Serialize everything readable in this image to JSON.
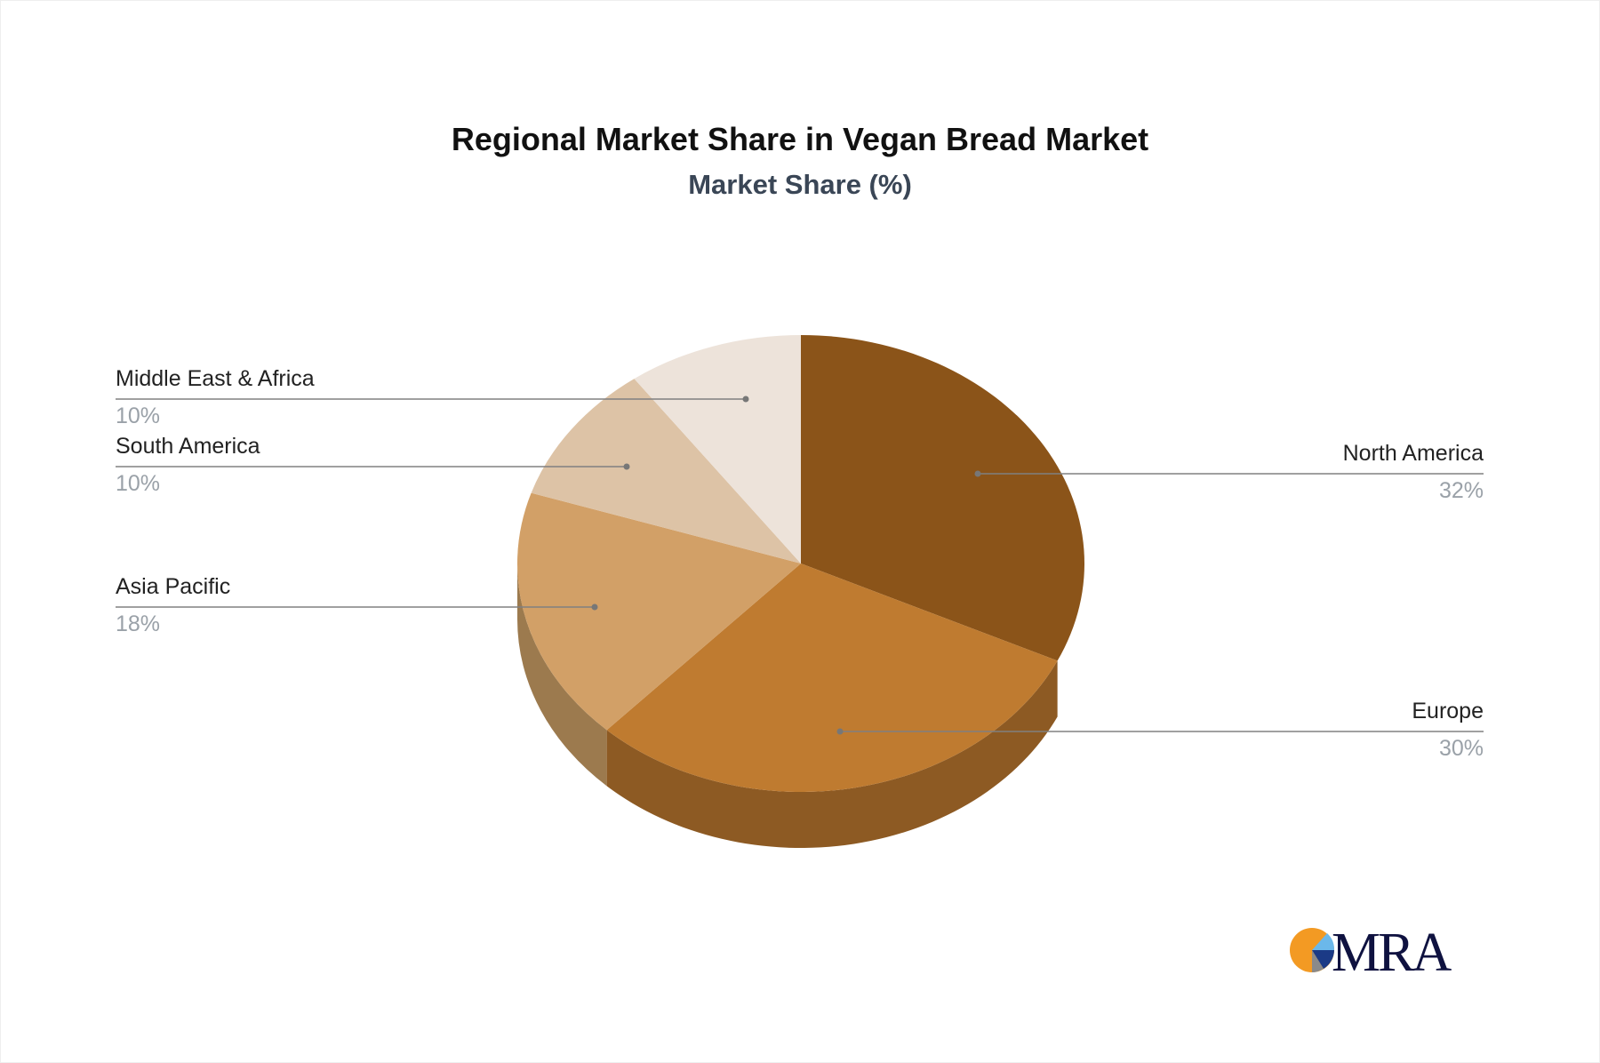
{
  "chart_data": {
    "type": "pie",
    "style": "3d",
    "title": "Regional Market Share in Vegan Bread Market",
    "subtitle": "Market Share (%)",
    "slices": [
      {
        "label": "North America",
        "value": 32,
        "value_label": "32%",
        "color": "#8B5419",
        "side_color": "#6B3F12"
      },
      {
        "label": "Europe",
        "value": 30,
        "value_label": "30%",
        "color": "#BF7B30",
        "side_color": "#8D5A23"
      },
      {
        "label": "Asia Pacific",
        "value": 18,
        "value_label": "18%",
        "color": "#D2A067",
        "side_color": "#9C7A4E"
      },
      {
        "label": "South America",
        "value": 10,
        "value_label": "10%",
        "color": "#DDC3A6",
        "side_color": "#B09A80"
      },
      {
        "label": "Middle East & Africa",
        "value": 10,
        "value_label": "10%",
        "color": "#EDE3DA",
        "side_color": "#C4B8AC"
      }
    ]
  },
  "logo": {
    "text": "MRA",
    "colors": {
      "orange": "#F39A23",
      "navy": "#0F1240",
      "light_blue": "#6BB8EA",
      "blue": "#1B3A86",
      "gray": "#8A8A8A"
    }
  }
}
